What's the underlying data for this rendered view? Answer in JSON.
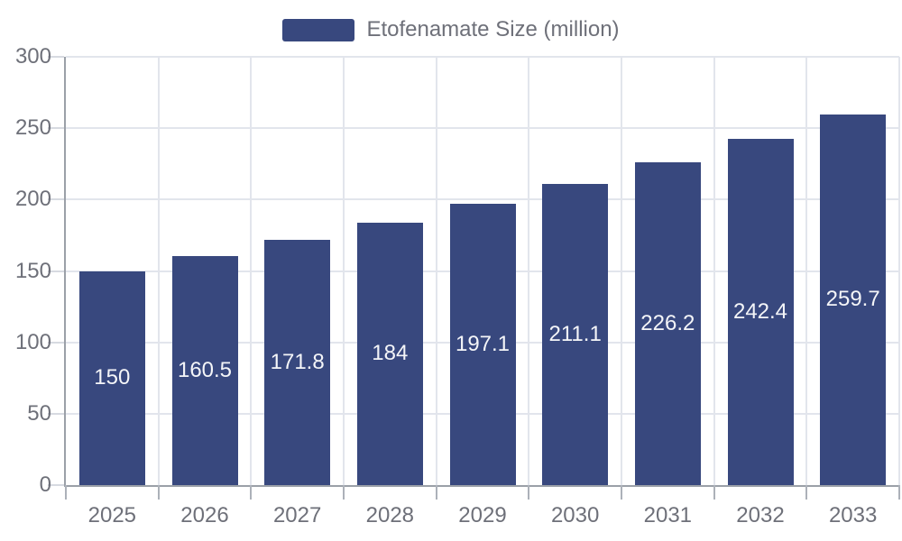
{
  "legend": {
    "label": "Etofenamate Size (million)"
  },
  "chart_data": {
    "type": "bar",
    "title": "",
    "categories": [
      "2025",
      "2026",
      "2027",
      "2028",
      "2029",
      "2030",
      "2031",
      "2032",
      "2033"
    ],
    "series": [
      {
        "name": "Etofenamate Size (million)",
        "values": [
          150,
          160.5,
          171.8,
          184,
          197.1,
          211.1,
          226.2,
          242.4,
          259.7
        ]
      }
    ],
    "value_labels": [
      "150",
      "160.5",
      "171.8",
      "184",
      "197.1",
      "211.1",
      "226.2",
      "242.4",
      "259.7"
    ],
    "xlabel": "",
    "ylabel": "",
    "ylim": [
      0,
      300
    ],
    "yticks": [
      0,
      50,
      100,
      150,
      200,
      250,
      300
    ],
    "grid": true,
    "legend_position": "top-center",
    "colors": {
      "bar": "#38487E",
      "value_label": "#F4F5F8",
      "axis_label": "#6E7079",
      "legend_text": "#6E7079",
      "grid_line": "#E2E5EC",
      "axis_line": "#9BA0A8",
      "tick_x": "#ACB1B9",
      "tick_y": "#D7DAE1",
      "background": "#FFFFFF"
    }
  }
}
